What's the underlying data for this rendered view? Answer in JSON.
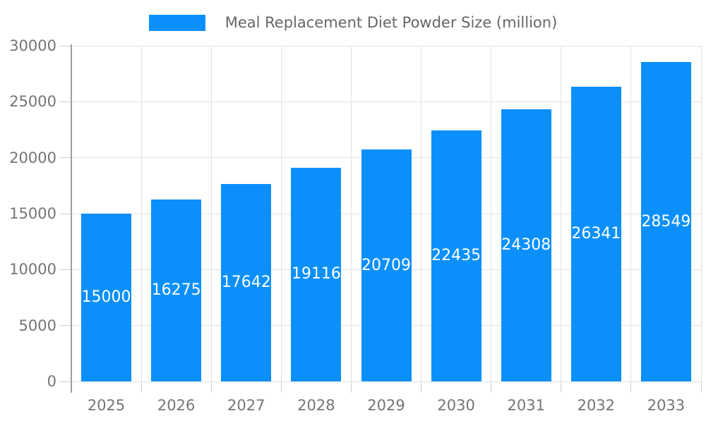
{
  "legend": {
    "label": "Meal Replacement Diet Powder Size (million)"
  },
  "chart_data": {
    "type": "bar",
    "title": "Meal Replacement Diet Powder Size (million)",
    "series_name": "Meal Replacement Diet Powder Size (million)",
    "categories": [
      "2025",
      "2026",
      "2027",
      "2028",
      "2029",
      "2030",
      "2031",
      "2032",
      "2033"
    ],
    "values": [
      15000,
      16275,
      17642,
      19116,
      20709,
      22435,
      24308,
      26341,
      28549
    ],
    "xlabel": "",
    "ylabel": "",
    "ylim": [
      0,
      30000
    ],
    "ytick_interval": 5000,
    "yticks": [
      0,
      5000,
      10000,
      15000,
      20000,
      25000,
      30000
    ],
    "grid": true,
    "legend_position": "top-center",
    "value_label_position": "inside-center",
    "colors": {
      "bar": "#0b90fb",
      "value_label": "#ffffff",
      "axis_label": "#757575",
      "legend_text": "#666666",
      "axis_line": "#9e9e9e",
      "gridline": "#e3e3e3",
      "tick": "#cfcfcf",
      "background": "#ffffff"
    }
  }
}
